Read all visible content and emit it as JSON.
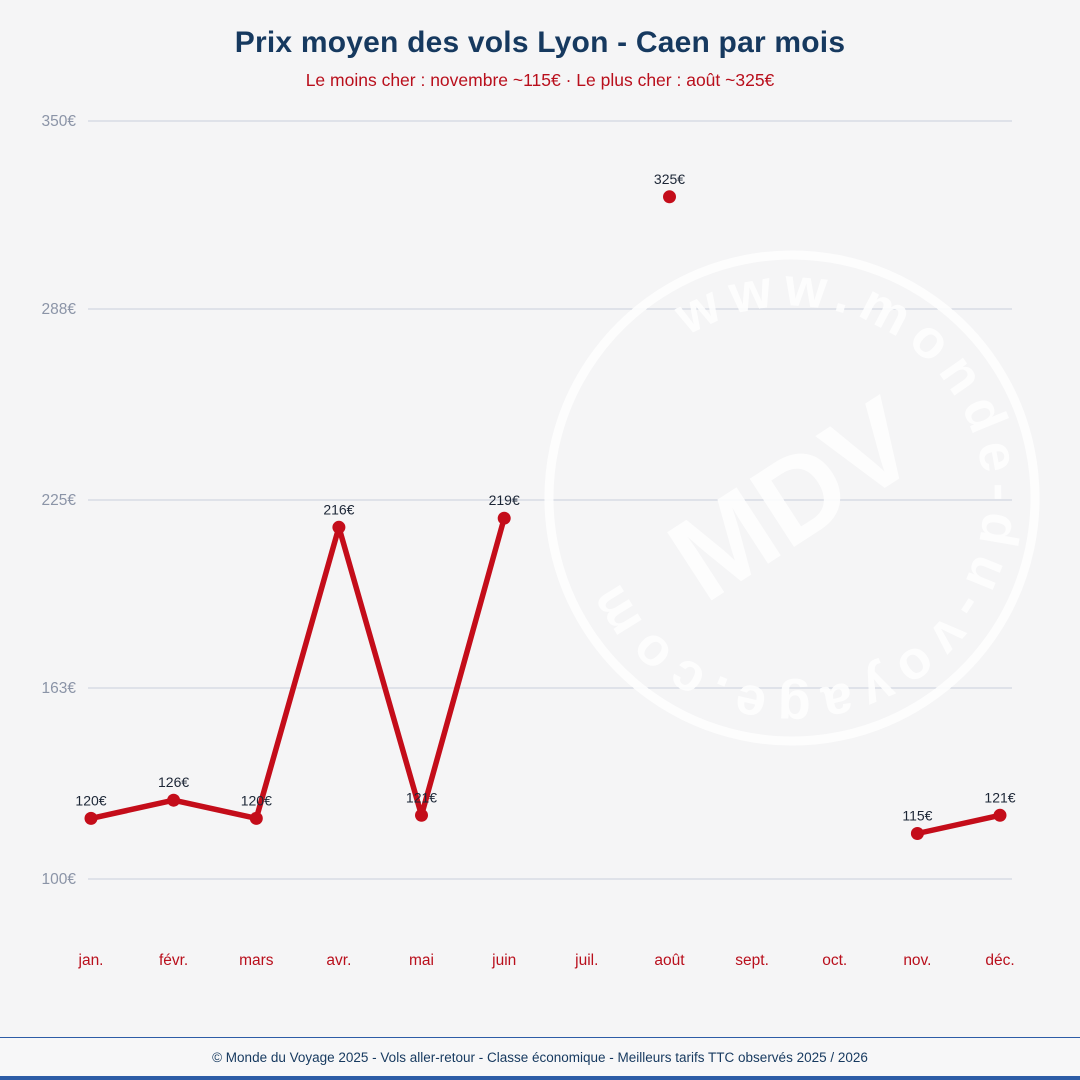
{
  "header": {
    "title": "Prix moyen des vols Lyon - Caen par mois",
    "subtitle": "Le moins cher : novembre ~115€ · Le plus cher : août ~325€"
  },
  "chart_data": {
    "type": "line",
    "title": "Prix moyen des vols Lyon - Caen par mois",
    "categories": [
      "jan.",
      "févr.",
      "mars",
      "avr.",
      "mai",
      "juin",
      "juil.",
      "août",
      "sept.",
      "oct.",
      "nov.",
      "déc."
    ],
    "values": [
      120,
      126,
      120,
      216,
      121,
      219,
      null,
      325,
      null,
      null,
      115,
      121
    ],
    "point_labels": [
      "120€",
      "126€",
      "120€",
      "216€",
      "121€",
      "219€",
      null,
      "325€",
      null,
      null,
      "115€",
      "121€"
    ],
    "ylim": [
      100,
      350
    ],
    "yticks": [
      350,
      288,
      225,
      163,
      100
    ],
    "ytick_labels": [
      "350€",
      "288€",
      "225€",
      "163€",
      "100€"
    ],
    "grid": true,
    "legend": "none",
    "line_color": "#c40d1a",
    "grid_color": "#c9cfdc",
    "ytick_color": "#8b94a7",
    "xtick_color": "#b90f1c",
    "point_label_color": "#1c2636"
  },
  "watermark": {
    "ring_text": "www.monde-du-voyage.com",
    "center_text": "MDV",
    "color": "#ffffff"
  },
  "footer": {
    "text": "© Monde du Voyage 2025 - Vols aller-retour - Classe économique - Meilleurs tarifs TTC observés 2025 / 2026"
  }
}
